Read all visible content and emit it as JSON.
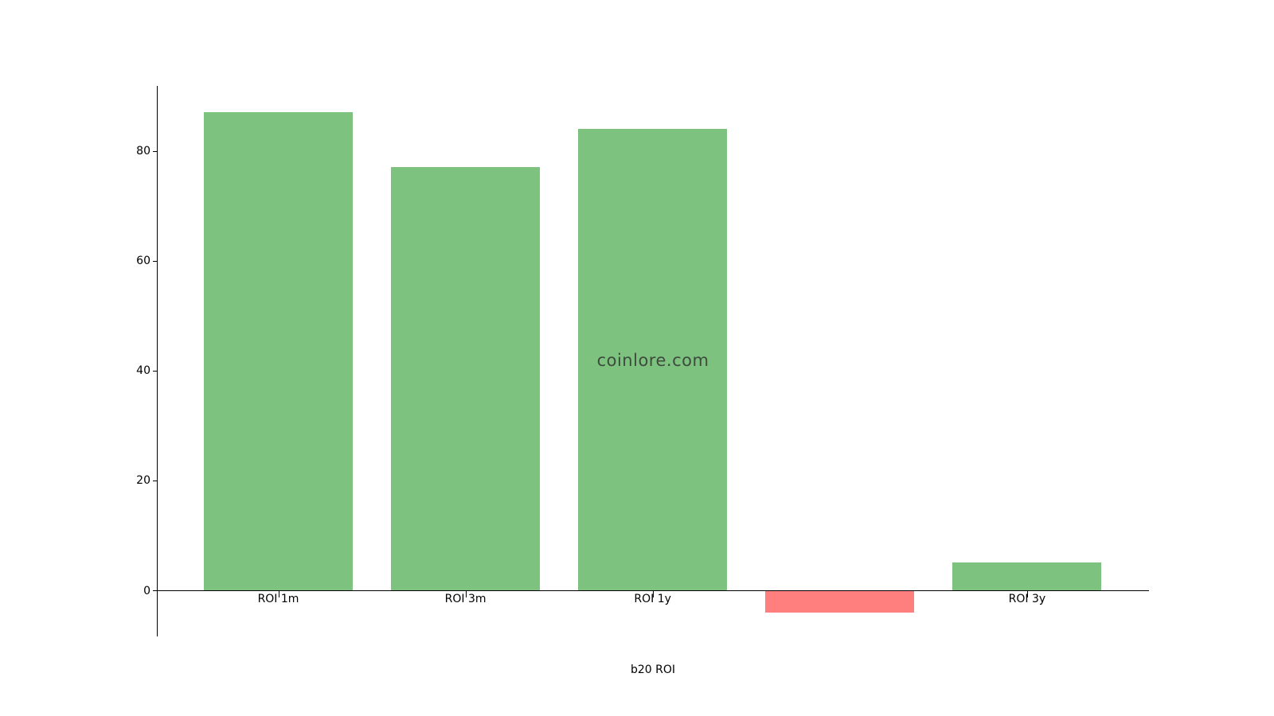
{
  "watermark_text": "coinlore.com",
  "chart_data": {
    "type": "bar",
    "title": "",
    "xlabel": "b20 ROI",
    "ylabel": "",
    "categories": [
      "ROI 1m",
      "ROI 3m",
      "ROI 1y",
      "",
      "ROI 3y"
    ],
    "values": [
      87,
      77,
      84,
      -4,
      5
    ],
    "bar_colors": [
      "#7dc27e",
      "#7dc27e",
      "#7dc27e",
      "#ff7f7f",
      "#7dc27e"
    ],
    "positive_color": "#7dc27e",
    "negative_color": "#ff7f7f",
    "axis_color": "#000000",
    "tick_text_color": "#000000",
    "watermark_color": "#3f4b3f",
    "yticks": [
      0,
      20,
      40,
      60,
      80
    ],
    "ylim": [
      -8.4,
      91.8
    ],
    "grid": false,
    "legend": false,
    "note_fourth_category_label": "not visible (covered by negative bar)"
  }
}
